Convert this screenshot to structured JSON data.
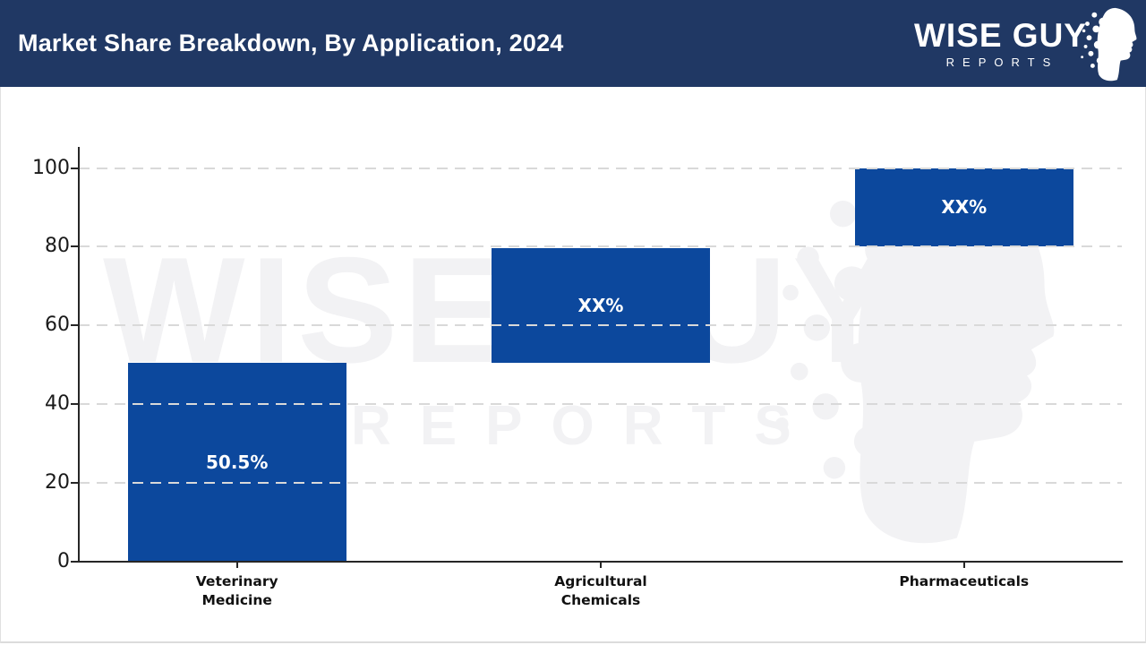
{
  "header": {
    "title": "Market Share Breakdown, By Application, 2024",
    "logo": {
      "line1": "WISE GUY",
      "line2": "REPORTS",
      "icon": "dotted-face-profile"
    }
  },
  "watermark": {
    "line1": "WISE GUY",
    "line2": "REPORTS",
    "icon": "dotted-face-profile"
  },
  "chart_data": {
    "type": "bar",
    "variant": "waterfall-floating-bars",
    "title": "Market Share Breakdown, By Application, 2024",
    "categories": [
      "Veterinary Medicine",
      "Agricultural Chemicals",
      "Pharmaceuticals"
    ],
    "series": [
      {
        "name": "Veterinary Medicine",
        "start": 0,
        "end": 50.5,
        "label": "50.5%"
      },
      {
        "name": "Agricultural Chemicals",
        "start": 50.5,
        "end": 79.5,
        "label": "XX%"
      },
      {
        "name": "Pharmaceuticals",
        "start": 80,
        "end": 100,
        "label": "XX%"
      }
    ],
    "xlabel": "",
    "ylabel": "",
    "ylim": [
      0,
      100
    ],
    "yticks": [
      0,
      20,
      40,
      60,
      80,
      100
    ],
    "grid": "horizontal-dashed, drawn over bars",
    "legend": "none",
    "bar_color": "#0c489d",
    "bar_label_color": "#ffffff"
  },
  "colors": {
    "header_bg": "#203864",
    "bar": "#0c489d",
    "axis": "#262626",
    "gridline": "#d9d9d9",
    "watermark": "#f2f2f4",
    "chart_bg": "#ffffff"
  }
}
